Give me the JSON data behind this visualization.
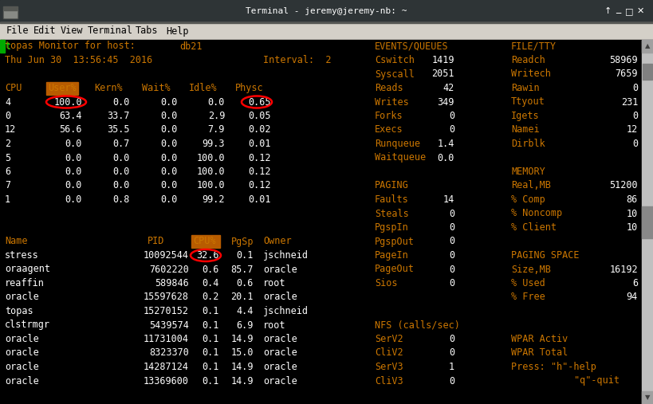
{
  "title_bar": "Terminal - jeremy@jeremy-nb: ~",
  "menu_items": [
    "File",
    "Edit",
    "View",
    "Terminal",
    "Tabs",
    "Help"
  ],
  "bg_color": "#000000",
  "title_bar_bg": "#3c3c3c",
  "menu_bar_bg": "#d4d0c8",
  "orange": "#cc7700",
  "white": "#ffffff",
  "green": "#00cc00",
  "cpu_rows": [
    {
      "cpu": "4",
      "user": "100.0",
      "kern": "0.0",
      "wait": "0.0",
      "idle": "0.0",
      "physc": "0.65"
    },
    {
      "cpu": "0",
      "user": "63.4",
      "kern": "33.7",
      "wait": "0.0",
      "idle": "2.9",
      "physc": "0.05"
    },
    {
      "cpu": "12",
      "user": "56.6",
      "kern": "35.5",
      "wait": "0.0",
      "idle": "7.9",
      "physc": "0.02"
    },
    {
      "cpu": "2",
      "user": "0.0",
      "kern": "0.7",
      "wait": "0.0",
      "idle": "99.3",
      "physc": "0.01"
    },
    {
      "cpu": "5",
      "user": "0.0",
      "kern": "0.0",
      "wait": "0.0",
      "idle": "100.0",
      "physc": "0.12"
    },
    {
      "cpu": "6",
      "user": "0.0",
      "kern": "0.0",
      "wait": "0.0",
      "idle": "100.0",
      "physc": "0.12"
    },
    {
      "cpu": "7",
      "user": "0.0",
      "kern": "0.0",
      "wait": "0.0",
      "idle": "100.0",
      "physc": "0.12"
    },
    {
      "cpu": "1",
      "user": "0.0",
      "kern": "0.8",
      "wait": "0.0",
      "idle": "99.2",
      "physc": "0.01"
    }
  ],
  "proc_rows": [
    {
      "name": "stress",
      "pid": "10092544",
      "cpu": "32.6",
      "pgsp": "0.1",
      "owner": "jschneid"
    },
    {
      "name": "oraagent",
      "pid": "7602220",
      "cpu": "0.6",
      "pgsp": "85.7",
      "owner": "oracle"
    },
    {
      "name": "reaffin",
      "pid": "589846",
      "cpu": "0.4",
      "pgsp": "0.6",
      "owner": "root"
    },
    {
      "name": "oracle",
      "pid": "15597628",
      "cpu": "0.2",
      "pgsp": "20.1",
      "owner": "oracle"
    },
    {
      "name": "topas",
      "pid": "15270152",
      "cpu": "0.1",
      "pgsp": "4.4",
      "owner": "jschneid"
    },
    {
      "name": "clstrmgr",
      "pid": "5439574",
      "cpu": "0.1",
      "pgsp": "6.9",
      "owner": "root"
    },
    {
      "name": "oracle",
      "pid": "11731004",
      "cpu": "0.1",
      "pgsp": "14.9",
      "owner": "oracle"
    },
    {
      "name": "oracle",
      "pid": "8323370",
      "cpu": "0.1",
      "pgsp": "15.0",
      "owner": "oracle"
    },
    {
      "name": "oracle",
      "pid": "14287124",
      "cpu": "0.1",
      "pgsp": "14.9",
      "owner": "oracle"
    },
    {
      "name": "oracle",
      "pid": "13369600",
      "cpu": "0.1",
      "pgsp": "14.9",
      "owner": "oracle"
    }
  ]
}
